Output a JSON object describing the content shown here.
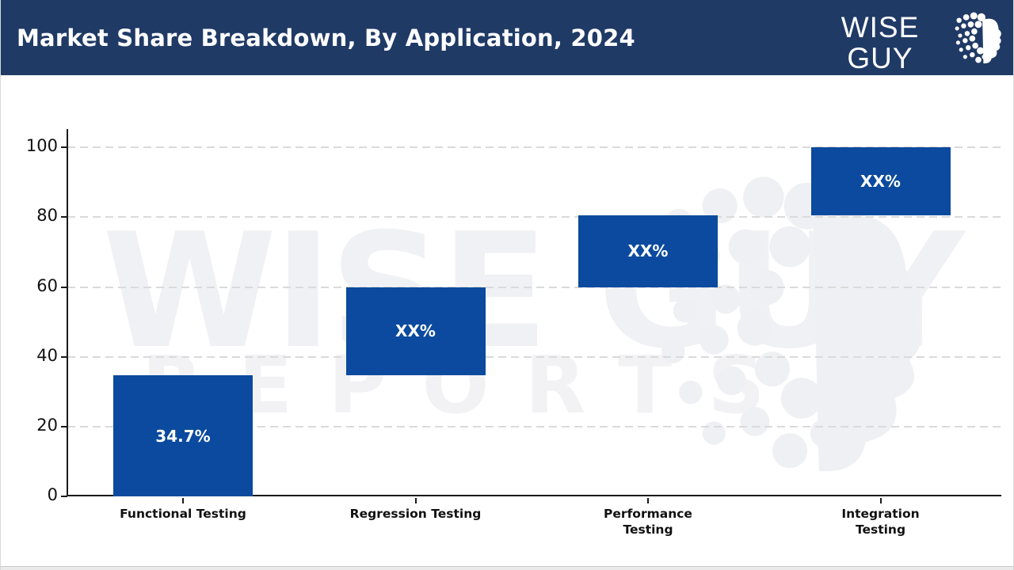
{
  "header": {
    "title": "Market Share Breakdown, By Application, 2024",
    "logo": {
      "line1": "WISE GUY",
      "line2": "REPORTS"
    }
  },
  "watermark": {
    "line1": "WISE GUY",
    "line2": "REPORTS"
  },
  "colors": {
    "header_bg": "#203a66",
    "bar": "#0b4a9e",
    "grid": "#dadada",
    "axis": "#1a1a1a",
    "bar_label": "#ffffff",
    "watermark": "#f0f1f4"
  },
  "chart_data": {
    "type": "bar",
    "subtype": "waterfall",
    "title": "Market Share Breakdown, By Application, 2024",
    "categories": [
      "Functional Testing",
      "Regression Testing",
      "Performance Testing",
      "Integration Testing"
    ],
    "category_lines": [
      [
        "Functional Testing"
      ],
      [
        "Regression Testing"
      ],
      [
        "Performance",
        "Testing"
      ],
      [
        "Integration",
        "Testing"
      ]
    ],
    "segments": [
      {
        "category": "Functional Testing",
        "start": 0,
        "end": 34.7,
        "label": "34.7%"
      },
      {
        "category": "Regression Testing",
        "start": 34.7,
        "end": 60,
        "label": "XX%"
      },
      {
        "category": "Performance Testing",
        "start": 60,
        "end": 80.5,
        "label": "XX%"
      },
      {
        "category": "Integration Testing",
        "start": 80.5,
        "end": 100,
        "label": "XX%"
      }
    ],
    "xlabel": "",
    "ylabel": "",
    "ylim": [
      0,
      100
    ],
    "yticks": [
      0,
      20,
      40,
      60,
      80,
      100
    ],
    "grid": "horizontal-dashed",
    "legend": "none",
    "bar_color": "#0b4a9e",
    "value_label_color": "#ffffff"
  }
}
